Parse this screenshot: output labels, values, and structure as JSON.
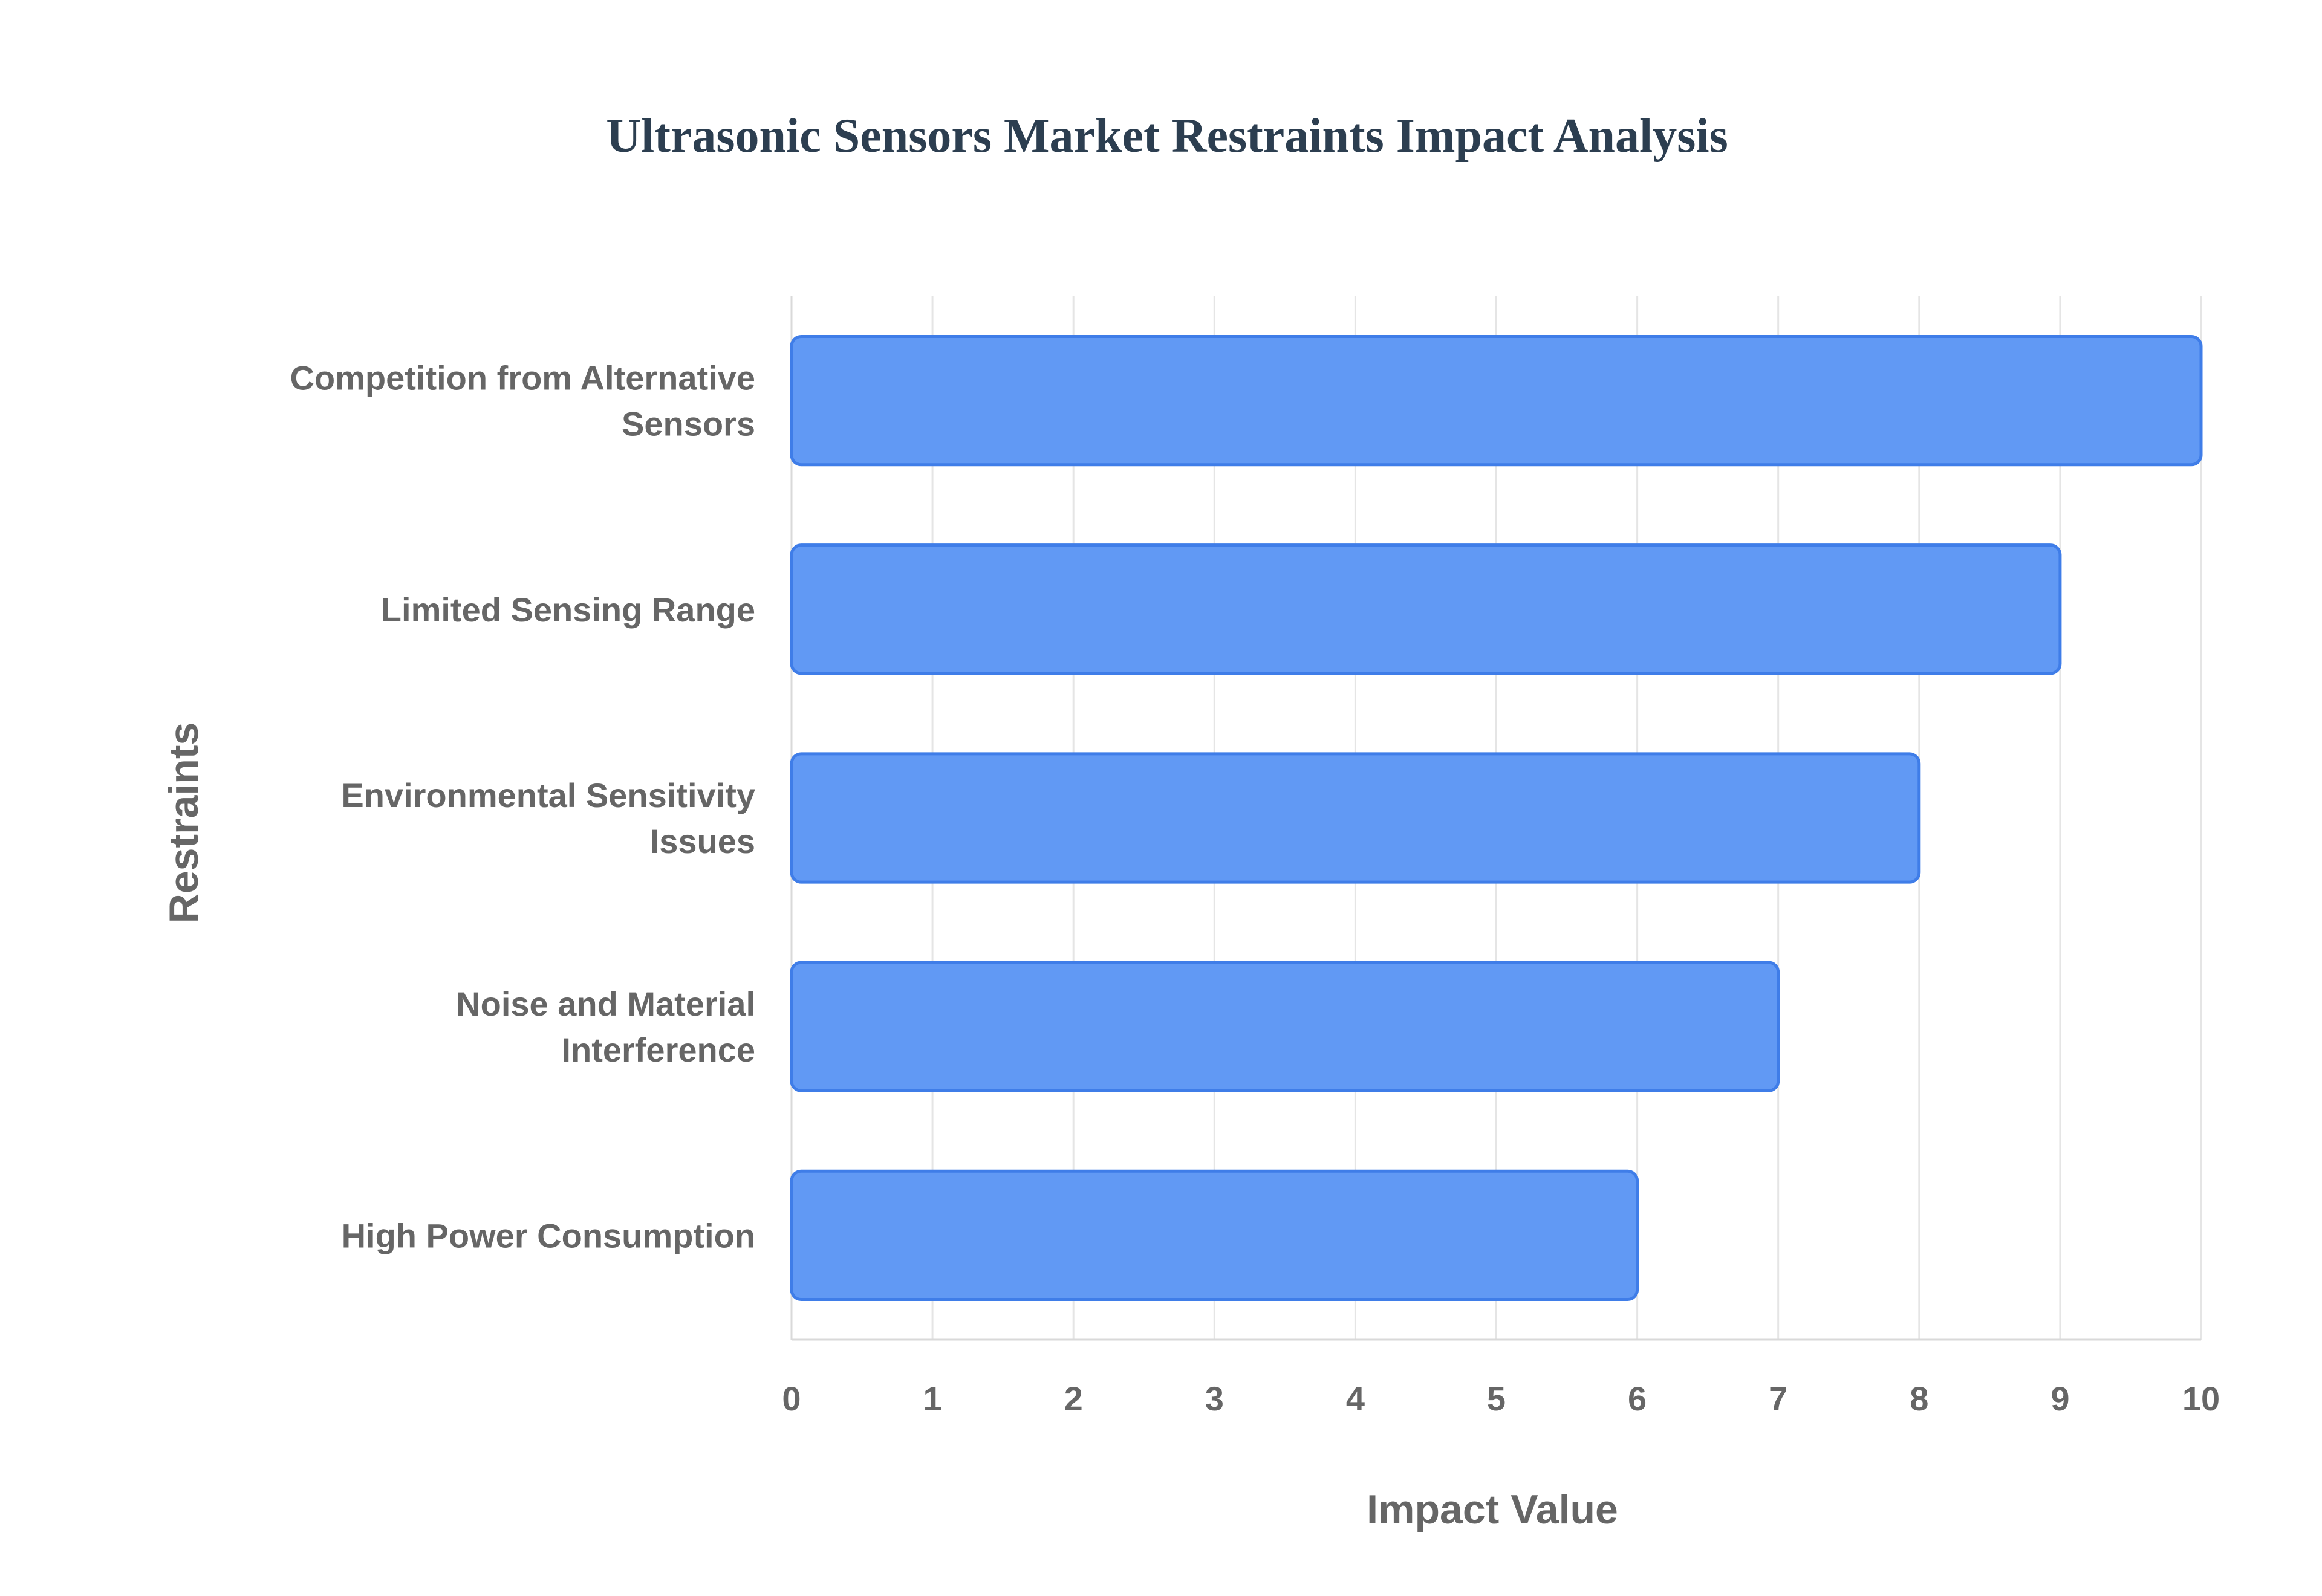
{
  "chart_data": {
    "type": "bar",
    "orientation": "horizontal",
    "title": "Ultrasonic Sensors Market Restraints Impact Analysis",
    "xlabel": "Impact Value",
    "ylabel": "Restraints",
    "xlim": [
      0,
      10
    ],
    "x_ticks": [
      "0",
      "1",
      "2",
      "3",
      "4",
      "5",
      "6",
      "7",
      "8",
      "9",
      "10"
    ],
    "categories": [
      [
        "Competition from Alternative",
        "Sensors"
      ],
      [
        "Limited Sensing Range"
      ],
      [
        "Environmental Sensitivity",
        "Issues"
      ],
      [
        "Noise and Material",
        "Interference"
      ],
      [
        "High Power Consumption"
      ]
    ],
    "values": [
      10,
      9,
      8,
      7,
      6
    ],
    "grid": true,
    "legend": "none",
    "colors": {
      "bar_fill": "#6199f4",
      "bar_stroke": "#3f7de8",
      "title": "#2c3e50",
      "label": "#666666",
      "grid": "#e5e5e5"
    }
  }
}
